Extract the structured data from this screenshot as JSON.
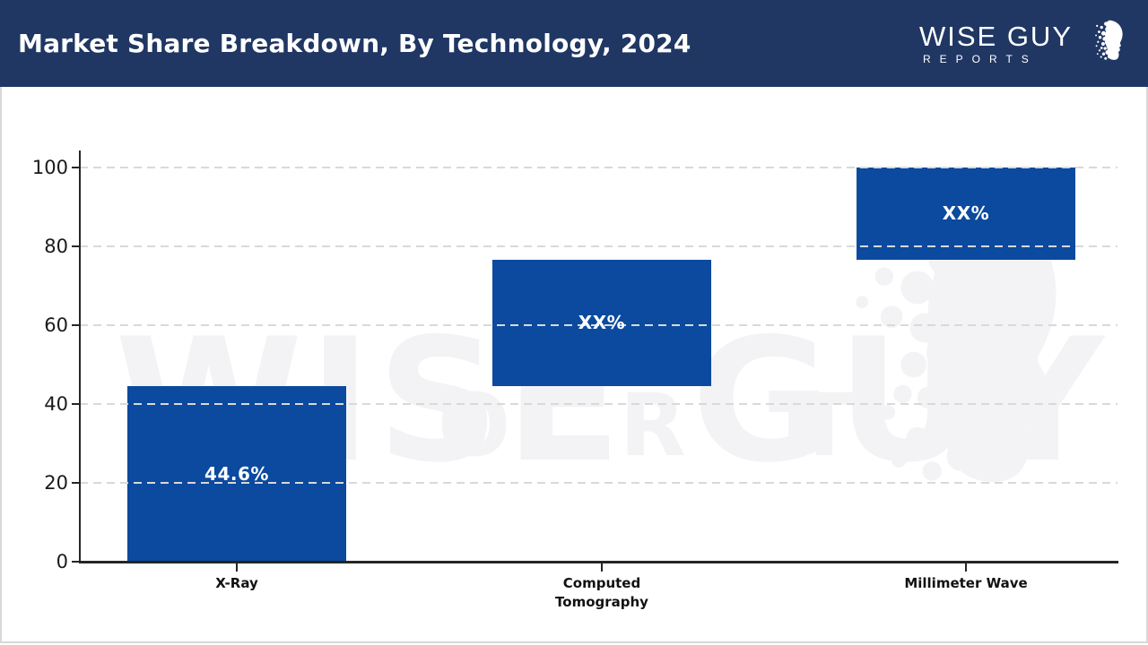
{
  "header": {
    "title": "Market Share Breakdown, By Technology, 2024",
    "logo": {
      "brand": "WISE GUY",
      "tagline": "REPORTS"
    }
  },
  "watermark": {
    "brand": "WISE GUY",
    "tagline": "P O R T S"
  },
  "chart_data": {
    "type": "bar",
    "subtype": "waterfall",
    "title": "Market Share Breakdown, By Technology, 2024",
    "categories": [
      "X-Ray",
      "Computed Tomography",
      "Millimeter Wave"
    ],
    "series": [
      {
        "name": "Market share (%)",
        "segments": [
          {
            "category": "X-Ray",
            "start": 0,
            "end": 44.6,
            "label": "44.6%"
          },
          {
            "category": "Computed Tomography",
            "start": 44.6,
            "end": 76.6,
            "label": "XX%"
          },
          {
            "category": "Millimeter Wave",
            "start": 76.6,
            "end": 100,
            "label": "XX%"
          }
        ]
      }
    ],
    "xlabel": "",
    "ylabel": "",
    "ylim": [
      0,
      100
    ],
    "yticks": [
      0,
      20,
      40,
      60,
      80,
      100
    ],
    "grid": "horizontal-dashed",
    "legend": "none",
    "colors": {
      "bar": "#0b4a9e",
      "bar_label": "#ffffff",
      "grid": "#d9d9d9",
      "axis": "#262626",
      "tick_text": "#1a1a1a",
      "header_bg": "#203764",
      "watermark": "#f3f3f5"
    }
  }
}
